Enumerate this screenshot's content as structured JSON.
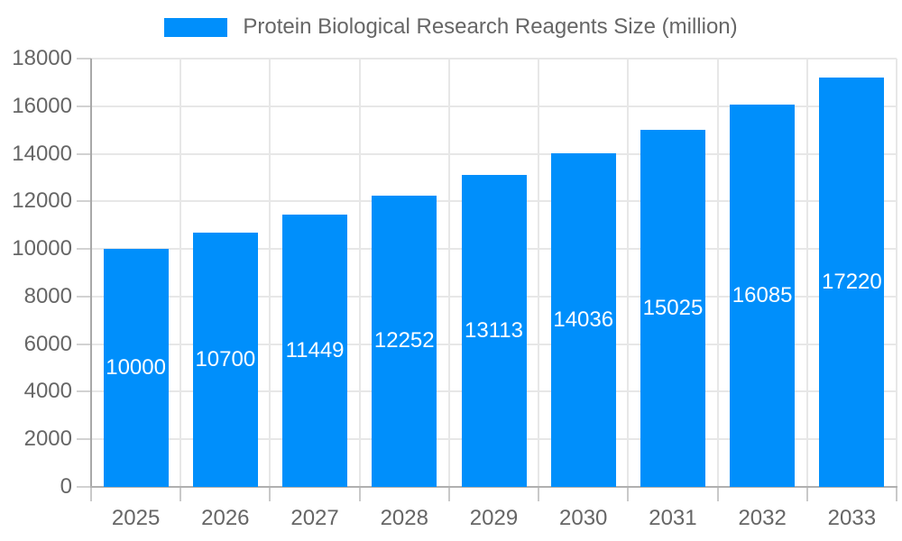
{
  "legend": {
    "label": "Protein Biological Research Reagents Size (million)"
  },
  "chart_data": {
    "type": "bar",
    "title": "Protein Biological Research Reagents Size (million)",
    "series_name": "Protein Biological Research Reagents Size (million)",
    "categories": [
      "2025",
      "2026",
      "2027",
      "2028",
      "2029",
      "2030",
      "2031",
      "2032",
      "2033"
    ],
    "values": [
      10000,
      10700,
      11449,
      12252,
      13113,
      14036,
      15025,
      16085,
      17220
    ],
    "data_labels_shown": true,
    "xlabel": "",
    "ylabel": "",
    "ylim": [
      0,
      18000
    ],
    "yticks": [
      0,
      2000,
      4000,
      6000,
      8000,
      10000,
      12000,
      14000,
      16000,
      18000
    ],
    "grid": true,
    "legend_position": "top",
    "bar_color": "#008FFB",
    "data_label_color": "#ffffff",
    "axis_text_color": "#666666"
  }
}
